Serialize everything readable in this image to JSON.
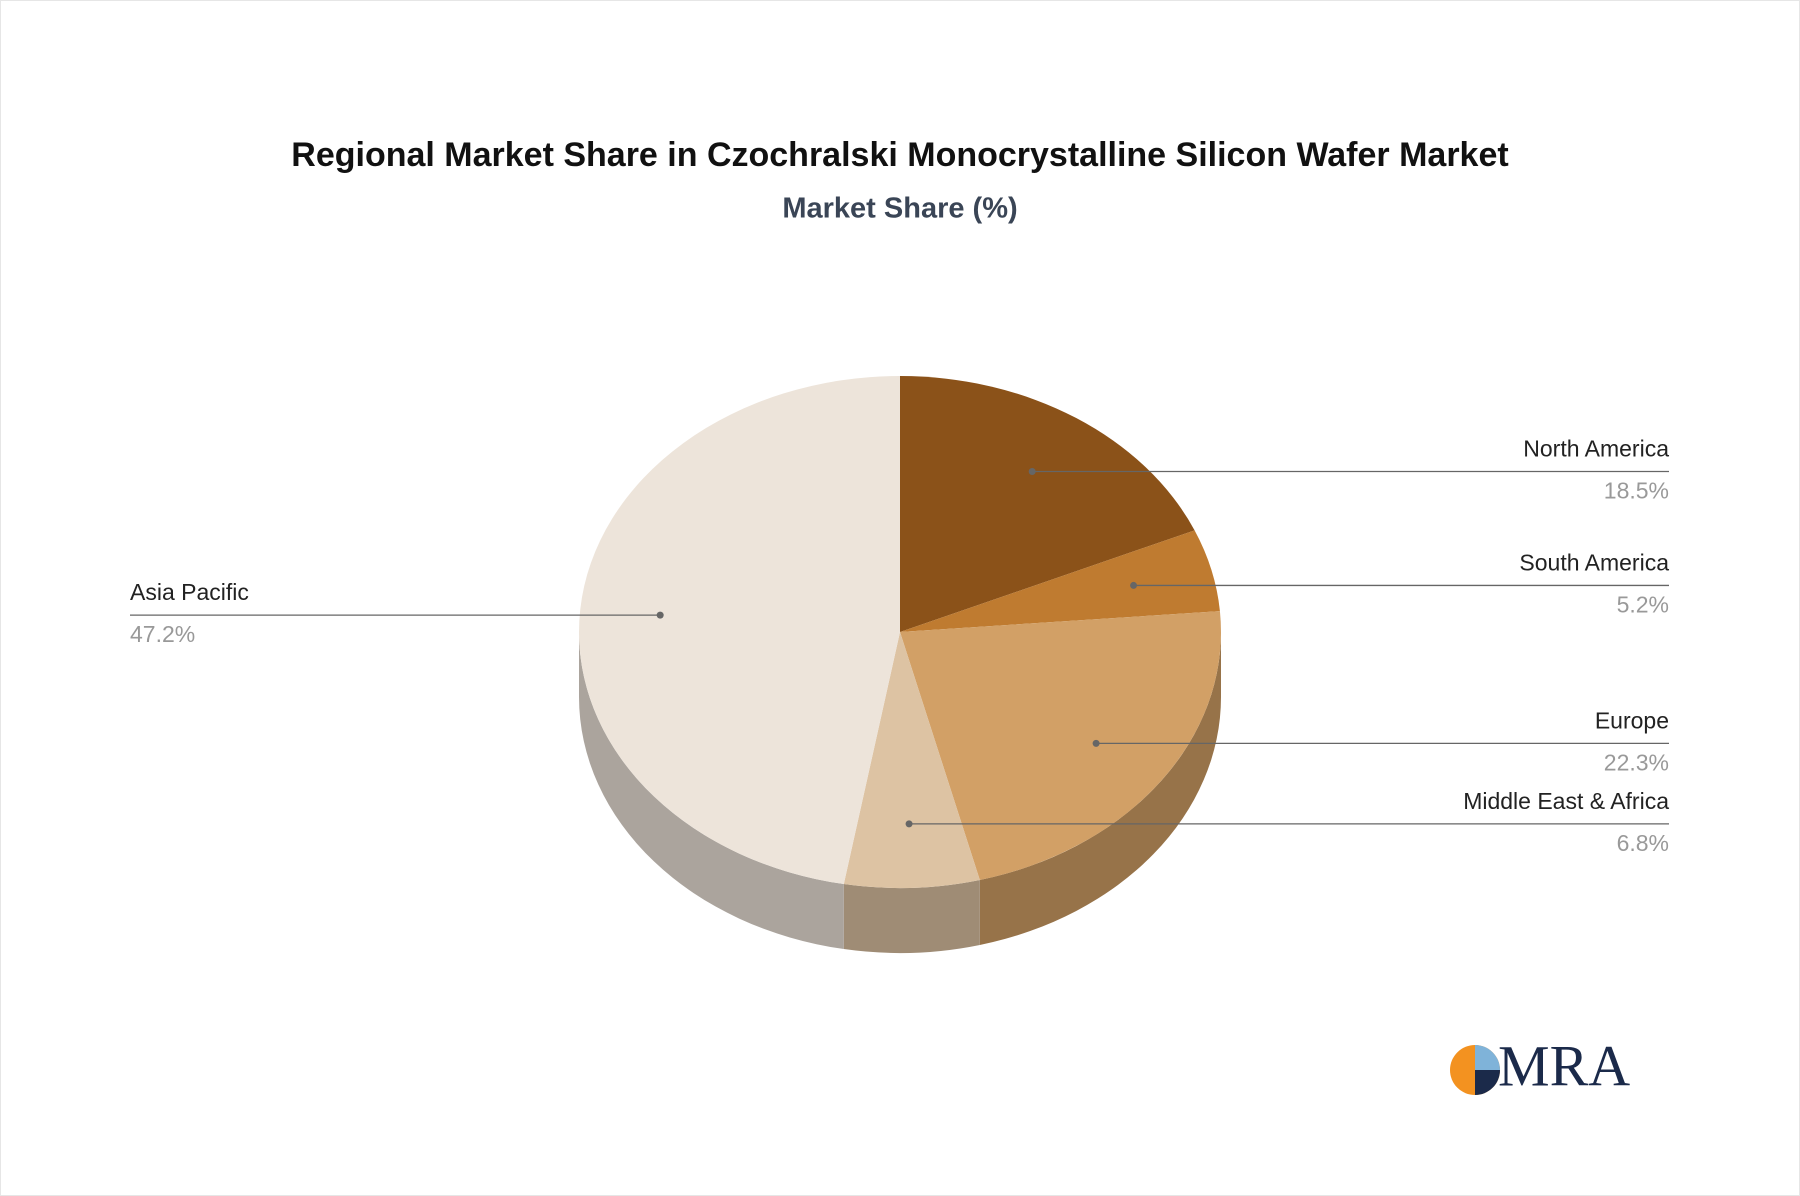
{
  "chart_data": {
    "type": "pie3d",
    "title": "Regional Market Share in Czochralski Monocrystalline Silicon Wafer Market",
    "subtitle": "Market Share (%)",
    "categories": [
      "North America",
      "South America",
      "Europe",
      "Middle East & Africa",
      "Asia Pacific"
    ],
    "values": [
      18.5,
      5.2,
      22.3,
      6.8,
      47.2
    ],
    "value_labels": [
      "18.5%",
      "5.2%",
      "22.3%",
      "6.8%",
      "47.2%"
    ],
    "colors": [
      "#8B5219",
      "#BF7B30",
      "#D2A066",
      "#DDC3A3",
      "#EDE4DA"
    ]
  },
  "logo": "MRA"
}
